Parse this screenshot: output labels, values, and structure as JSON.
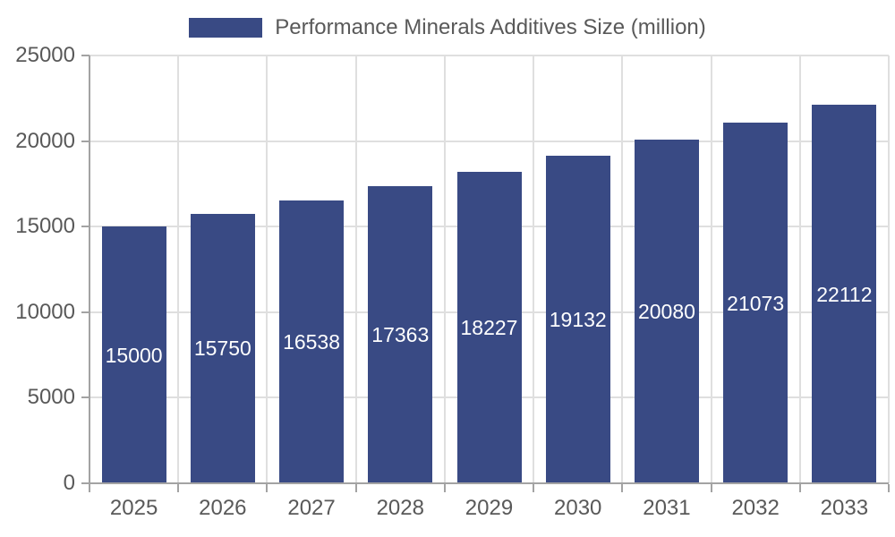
{
  "legend": {
    "label": "Performance Minerals Additives Size (million)"
  },
  "chart_data": {
    "type": "bar",
    "title": "Performance Minerals Additives Size (million)",
    "categories": [
      "2025",
      "2026",
      "2027",
      "2028",
      "2029",
      "2030",
      "2031",
      "2032",
      "2033"
    ],
    "values": [
      15000,
      15750,
      16538,
      17363,
      18227,
      19132,
      20080,
      21073,
      22112
    ],
    "bar_value_labels": [
      "15000",
      "15750",
      "16538",
      "17363",
      "18227",
      "19132",
      "20080",
      "21073",
      "22112"
    ],
    "xlabel": "",
    "ylabel": "",
    "ylim": [
      0,
      25000
    ],
    "y_ticks": [
      0,
      5000,
      10000,
      15000,
      20000,
      25000
    ],
    "y_tick_labels": [
      "0",
      "5000",
      "10000",
      "15000",
      "20000",
      "25000"
    ],
    "grid": true,
    "legend_position": "top-center",
    "value_label_position": "bar-center"
  },
  "colors": {
    "bar": "#394A84",
    "grid": "#DFDFDF",
    "axis": "#A3A3A3",
    "tick_text": "#595959",
    "legend_text": "#595959",
    "value_text": "#FFFFFF",
    "background": "#FFFFFF"
  }
}
